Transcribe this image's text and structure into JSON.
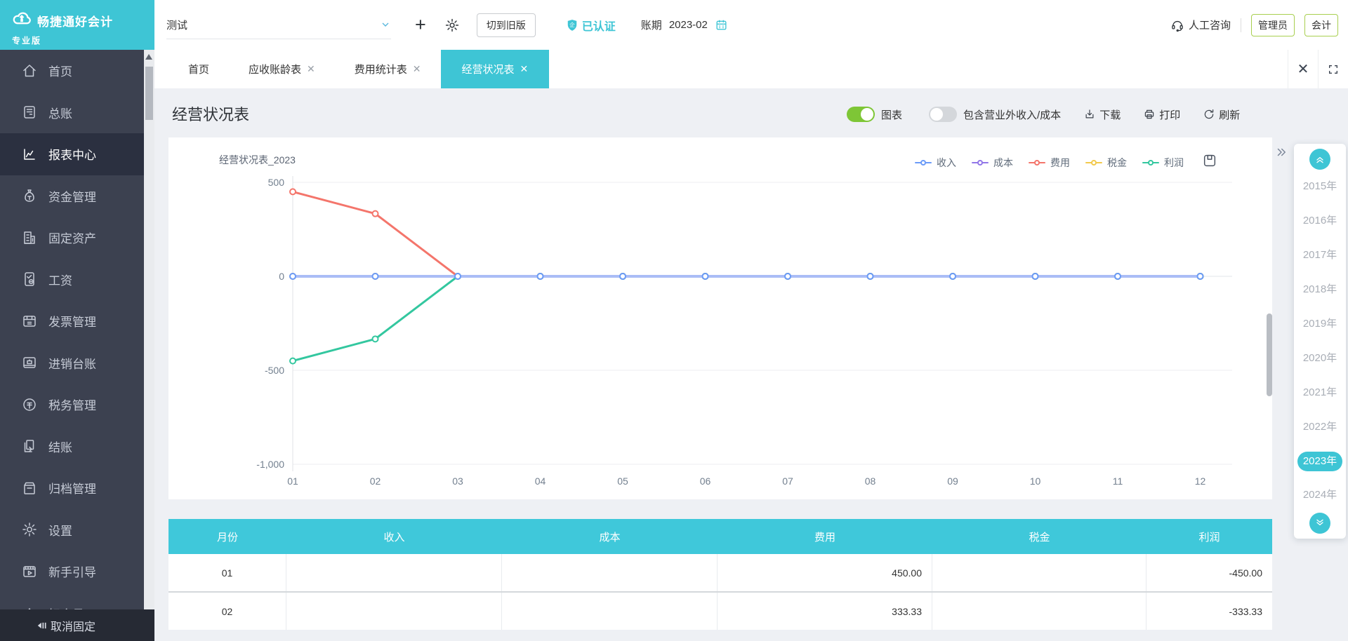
{
  "brand": {
    "logo_text": "畅捷通好会计",
    "edition": "专业版"
  },
  "topbar": {
    "company_select": {
      "value": "测试"
    },
    "switch_old_label": "切到旧版",
    "verified_label": "已认证",
    "period_label": "账期",
    "period_value": "2023-02",
    "support_label": "人工咨询",
    "role_admin": "管理员",
    "role_accounting": "会计"
  },
  "sidebar": {
    "items": [
      {
        "key": "home",
        "label": "首页",
        "active": false
      },
      {
        "key": "general-ledger",
        "label": "总账",
        "active": false
      },
      {
        "key": "report-center",
        "label": "报表中心",
        "active": true
      },
      {
        "key": "funds",
        "label": "资金管理",
        "active": false
      },
      {
        "key": "fixed-assets",
        "label": "固定资产",
        "active": false
      },
      {
        "key": "payroll",
        "label": "工资",
        "active": false
      },
      {
        "key": "invoice",
        "label": "发票管理",
        "active": false
      },
      {
        "key": "purchase-sales",
        "label": "进销台账",
        "active": false
      },
      {
        "key": "tax",
        "label": "税务管理",
        "active": false
      },
      {
        "key": "closing",
        "label": "结账",
        "active": false
      },
      {
        "key": "archive",
        "label": "归档管理",
        "active": false
      },
      {
        "key": "settings",
        "label": "设置",
        "active": false
      },
      {
        "key": "guide",
        "label": "新手引导",
        "active": false
      },
      {
        "key": "member",
        "label": "好会员",
        "active": false
      }
    ],
    "unpin_label": "取消固定"
  },
  "tabs": [
    {
      "key": "home",
      "label": "首页",
      "closable": false,
      "active": false
    },
    {
      "key": "receivable-aging",
      "label": "应收账龄表",
      "closable": true,
      "active": false
    },
    {
      "key": "expense-stats",
      "label": "费用统计表",
      "closable": true,
      "active": false
    },
    {
      "key": "operating-status",
      "label": "经营状况表",
      "closable": true,
      "active": true
    }
  ],
  "page": {
    "title": "经营状况表",
    "chart_toggle_label": "图表",
    "include_toggle_label": "包含营业外收入/成本",
    "download_label": "下载",
    "print_label": "打印",
    "refresh_label": "刷新"
  },
  "chart_data": {
    "type": "line",
    "title": "经营状况表_2023",
    "x": [
      "01",
      "02",
      "03",
      "04",
      "05",
      "06",
      "07",
      "08",
      "09",
      "10",
      "11",
      "12"
    ],
    "series": [
      {
        "key": "income",
        "name": "收入",
        "color": "#6b9bf8",
        "line_color": "#aabdf6",
        "values": [
          0,
          0,
          0,
          0,
          0,
          0,
          0,
          0,
          0,
          0,
          0,
          0
        ]
      },
      {
        "key": "cost",
        "name": "成本",
        "color": "#9277e8",
        "values": [
          0,
          0,
          0,
          0,
          0,
          0,
          0,
          0,
          0,
          0,
          0,
          0
        ]
      },
      {
        "key": "expense",
        "name": "费用",
        "color": "#f4756b",
        "values": [
          450,
          333.33,
          0,
          0,
          0,
          0,
          0,
          0,
          0,
          0,
          0,
          0
        ]
      },
      {
        "key": "tax",
        "name": "税金",
        "color": "#f2c94c",
        "values": [
          0,
          0,
          0,
          0,
          0,
          0,
          0,
          0,
          0,
          0,
          0,
          0
        ]
      },
      {
        "key": "profit",
        "name": "利润",
        "color": "#33c79f",
        "values": [
          -450,
          -333.33,
          0,
          0,
          0,
          0,
          0,
          0,
          0,
          0,
          0,
          0
        ]
      }
    ],
    "ylim": [
      -1000,
      500
    ],
    "yticks": [
      {
        "v": 500,
        "label": "500"
      },
      {
        "v": 0,
        "label": "0"
      },
      {
        "v": -500,
        "label": "-500"
      },
      {
        "v": -1000,
        "label": "-1,000"
      }
    ],
    "legend_position": "top-right",
    "grid": true
  },
  "year_panel": {
    "years": [
      "2015年",
      "2016年",
      "2017年",
      "2018年",
      "2019年",
      "2020年",
      "2021年",
      "2022年",
      "2023年",
      "2024年"
    ],
    "selected": "2023年"
  },
  "table": {
    "columns": [
      "月份",
      "收入",
      "成本",
      "费用",
      "税金",
      "利润"
    ],
    "rows": [
      [
        "01",
        "",
        "",
        "450.00",
        "",
        "-450.00"
      ],
      [
        "02",
        "",
        "",
        "333.33",
        "",
        "-333.33"
      ]
    ]
  }
}
